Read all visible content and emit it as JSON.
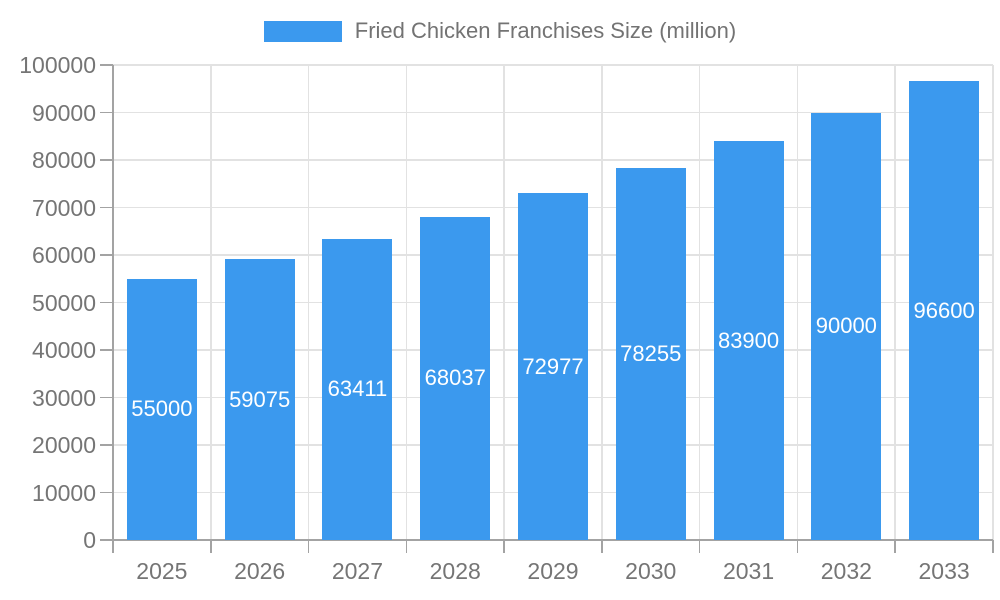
{
  "chart_data": {
    "type": "bar",
    "title": "Fried Chicken Franchises Size (million)",
    "categories": [
      "2025",
      "2026",
      "2027",
      "2028",
      "2029",
      "2030",
      "2031",
      "2032",
      "2033"
    ],
    "series": [
      {
        "name": "Fried Chicken Franchises Size (million)",
        "values": [
          55000,
          59075,
          63411,
          68037,
          72977,
          78255,
          83900,
          90000,
          96600
        ]
      }
    ],
    "xlabel": "",
    "ylabel": "",
    "ylim": [
      0,
      100000
    ],
    "yticks": [
      0,
      10000,
      20000,
      30000,
      40000,
      50000,
      60000,
      70000,
      80000,
      90000,
      100000
    ],
    "grid": true,
    "legend_position": "top",
    "value_labels": "inside-center",
    "colors": {
      "bar": "#3b99ee",
      "value_label": "#ffffff",
      "axis_line": "#a3a3a3",
      "gridline": "#e2e2e2",
      "axis_text": "#757575",
      "legend_text": "#737373",
      "background": "#ffffff"
    }
  }
}
